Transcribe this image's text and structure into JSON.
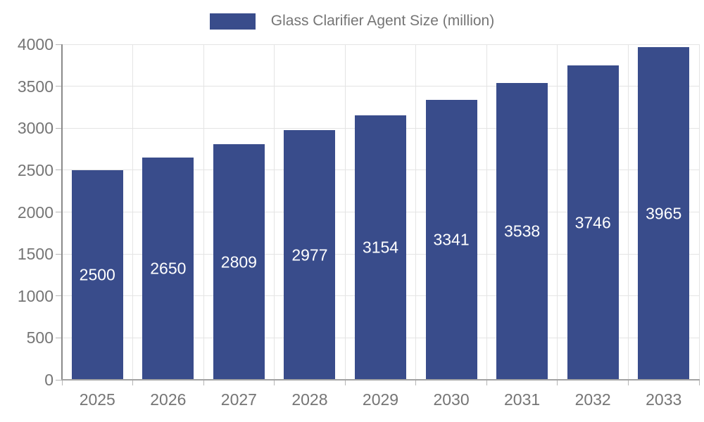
{
  "legend": {
    "label": "Glass Clarifier Agent Size (million)"
  },
  "chart_data": {
    "type": "bar",
    "title": "Glass Clarifier Agent Size (million)",
    "categories": [
      "2025",
      "2026",
      "2027",
      "2028",
      "2029",
      "2030",
      "2031",
      "2032",
      "2033"
    ],
    "series": [
      {
        "name": "Glass Clarifier Agent Size (million)",
        "values": [
          2500,
          2650,
          2809,
          2977,
          3154,
          3341,
          3538,
          3746,
          3965
        ]
      }
    ],
    "xlabel": "",
    "ylabel": "",
    "ylim": [
      0,
      4000
    ],
    "yticks": [
      0,
      500,
      1000,
      1500,
      2000,
      2500,
      3000,
      3500,
      4000
    ],
    "grid": true,
    "legend_position": "top-center",
    "value_label_position": "inside-center"
  },
  "colors": {
    "bar": "#394C8B",
    "grid_line": "#e4e4e4",
    "x_axis_line": "#a3a3a3",
    "y_axis_line": "#8a8a8a",
    "tick_mark": "#b5b5b5",
    "tick_label": "#757575",
    "value_label": "#ffffff",
    "legend_text": "#757575",
    "background": "#ffffff"
  }
}
